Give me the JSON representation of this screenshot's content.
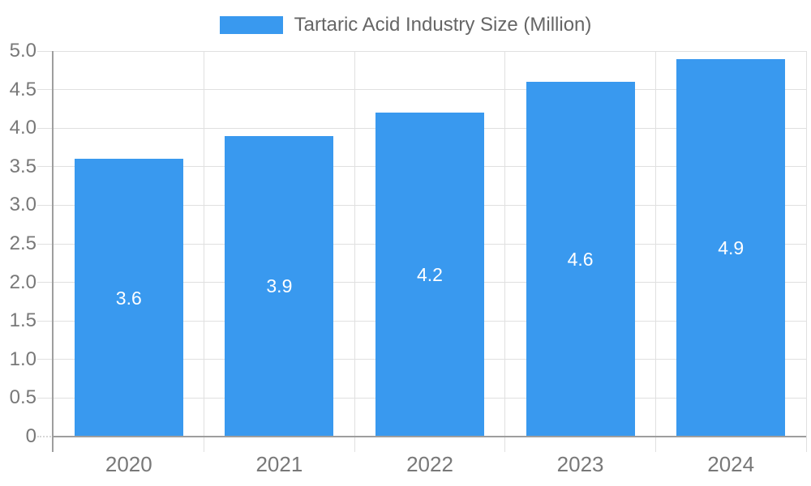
{
  "legend": {
    "label": "Tartaric Acid Industry Size (Million)"
  },
  "colors": {
    "bar": "#3999EF",
    "grid": "#E0E0E0",
    "axis": "#9E9E9E",
    "tick_text": "#787878",
    "legend_text": "#666666",
    "bar_label_text": "#FFFFFF",
    "background": "#FFFFFF"
  },
  "chart_data": {
    "type": "bar",
    "title": "Tartaric Acid Industry Size (Million)",
    "categories": [
      "2020",
      "2021",
      "2022",
      "2023",
      "2024"
    ],
    "series": [
      {
        "name": "Tartaric Acid Industry Size (Million)",
        "values": [
          3.6,
          3.9,
          4.2,
          4.6,
          4.9
        ],
        "value_labels": [
          "3.6",
          "3.9",
          "4.2",
          "4.6",
          "4.9"
        ]
      }
    ],
    "xlabel": "",
    "ylabel": "",
    "ylim": [
      0,
      5
    ],
    "ytick_step": 0.5,
    "yticks": [
      "0",
      "0.5",
      "1.0",
      "1.5",
      "2.0",
      "2.5",
      "3.0",
      "3.5",
      "4.0",
      "4.5",
      "5.0"
    ],
    "grid": true,
    "legend_position": "top",
    "value_labels_inside_bars": true
  }
}
